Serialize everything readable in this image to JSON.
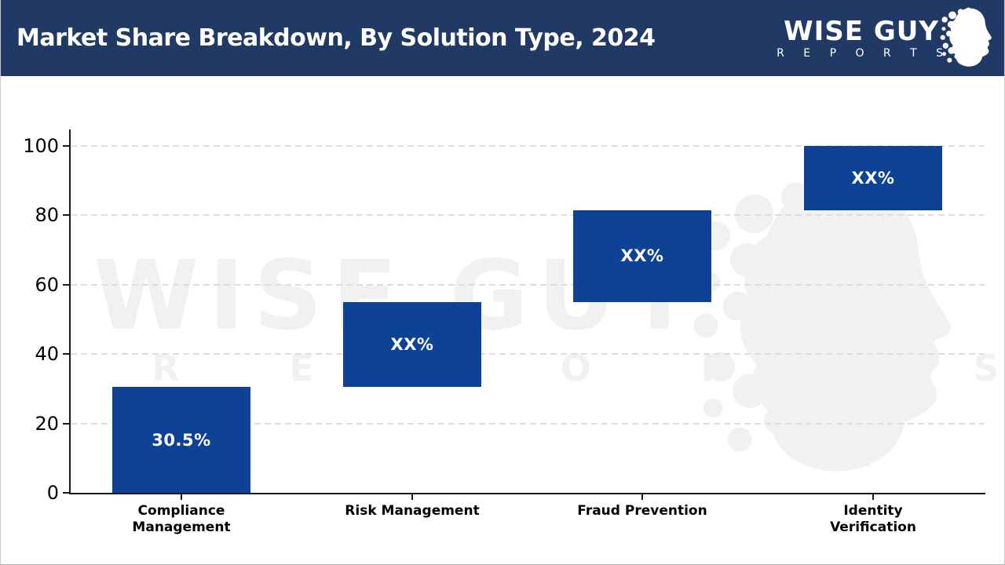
{
  "header": {
    "title": "Market Share Breakdown, By Solution Type, 2024",
    "logo": {
      "line1": "WISE GUY",
      "line2": "R E P O R T S",
      "icon": "dotted-face-profile-icon"
    }
  },
  "watermark": {
    "line1": "WISE GUY",
    "line2": "R E P O R T S",
    "icon": "dotted-face-profile-icon"
  },
  "chart_data": {
    "type": "bar",
    "variant": "waterfall-floating-bars",
    "title": "Market Share Breakdown, By Solution Type, 2024",
    "categories": [
      "Compliance Management",
      "Risk Management",
      "Fraud Prevention",
      "Identity Verification"
    ],
    "categories_display": [
      [
        "Compliance",
        "Management"
      ],
      [
        "Risk Management"
      ],
      [
        "Fraud Prevention"
      ],
      [
        "Identity",
        "Verification"
      ]
    ],
    "bars": [
      {
        "category": "Compliance Management",
        "start": 0,
        "end": 30.5,
        "label": "30.5%"
      },
      {
        "category": "Risk Management",
        "start": 30.5,
        "end": 55,
        "label": "XX%"
      },
      {
        "category": "Fraud Prevention",
        "start": 55,
        "end": 81.5,
        "label": "XX%"
      },
      {
        "category": "Identity Verification",
        "start": 81.5,
        "end": 100,
        "label": "XX%"
      }
    ],
    "yticks": [
      0,
      20,
      40,
      60,
      80,
      100
    ],
    "ylim": [
      0,
      105
    ],
    "xlabel": "",
    "ylabel": "",
    "grid": "horizontal-dashed",
    "legend": "none"
  },
  "colors": {
    "header_bg": "#203a65",
    "bar": "#0d4296",
    "bar_label": "#ffffff",
    "watermark": "#f1f1f4",
    "grid": "#dedede",
    "axis": "#1a1a1a",
    "title_text": "#ffffff"
  }
}
